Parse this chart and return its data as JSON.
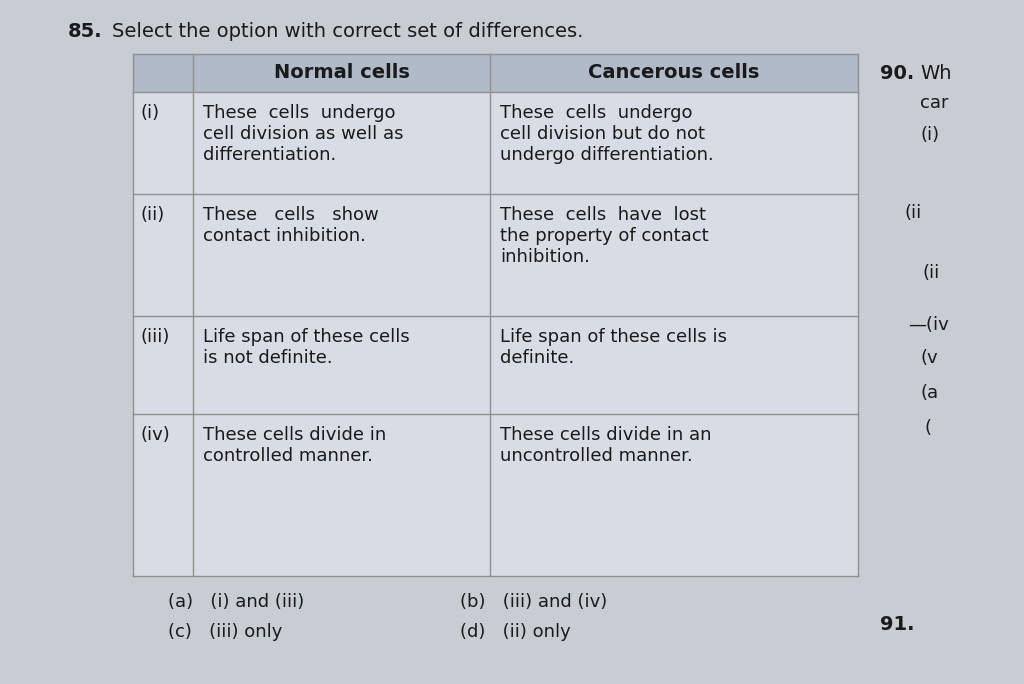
{
  "question_number": "85.",
  "question_text": "Select the option with correct set of differences.",
  "bg_color": "#c8cdd4",
  "header_bg": "#b0bac8",
  "cell_bg": "#d8dce4",
  "col_headers": [
    "Normal cells",
    "Cancerous cells"
  ],
  "row_labels": [
    "(i)",
    "(ii)",
    "(iii)",
    "(iv)"
  ],
  "normal_cells": [
    "These  cells  undergo\ncell division as well as\ndifferentiation.",
    "These   cells   show\ncontact inhibition.",
    "Life span of these cells\nis not definite.",
    "These cells divide in\ncontrolled manner."
  ],
  "cancerous_cells": [
    "These  cells  undergo\ncell division but do not\nundergo differentiation.",
    "These  cells  have  lost\nthe property of contact\ninhibition.",
    "Life span of these cells is\ndefinite.",
    "These cells divide in an\nuncontrolled manner."
  ],
  "options_left": [
    "(a)   (i) and (iii)",
    "(c)   (iii) only"
  ],
  "options_right": [
    "(b)   (iii) and (iv)",
    "(d)   (ii) only"
  ],
  "side_text": [
    "90.",
    "Wh",
    "car",
    "(i)",
    "(ii",
    "(ii",
    "(iv",
    "(v",
    "(a",
    "("
  ],
  "title_fontsize": 14,
  "header_fontsize": 14,
  "cell_fontsize": 13,
  "option_fontsize": 13,
  "label_fontsize": 13
}
